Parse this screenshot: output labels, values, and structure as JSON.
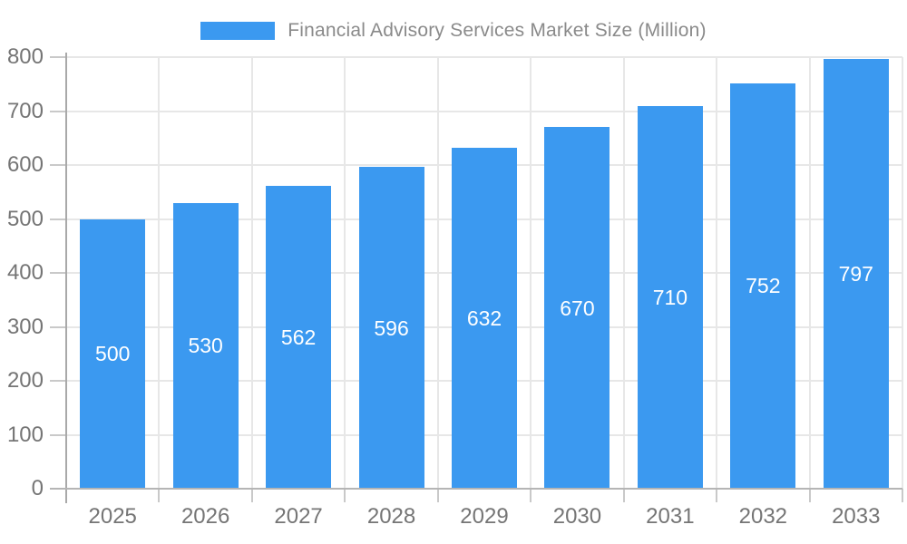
{
  "legend": {
    "label": "Financial Advisory Services Market Size (Million)"
  },
  "chart_data": {
    "type": "bar",
    "title": "Financial Advisory Services Market Size (Million)",
    "series_name": "Financial Advisory Services Market Size (Million)",
    "categories": [
      "2025",
      "2026",
      "2027",
      "2028",
      "2029",
      "2030",
      "2031",
      "2032",
      "2033"
    ],
    "values": [
      500,
      530,
      562,
      596,
      632,
      670,
      710,
      752,
      797
    ],
    "value_labels": [
      "500",
      "530",
      "562",
      "596",
      "632",
      "670",
      "710",
      "752",
      "797"
    ],
    "xlabel": "",
    "ylabel": "",
    "ylim": [
      0,
      800
    ],
    "yticks": [
      0,
      100,
      200,
      300,
      400,
      500,
      600,
      700,
      800
    ],
    "grid": true,
    "legend_position": "top-center",
    "bar_color": "#3B99F0",
    "value_label_color": "#FFFFFF",
    "colors": {
      "axis_label": "#757575",
      "title_text": "#8A8A8A",
      "gridline": "#E7E7E7",
      "tick": "#C9C9C9",
      "y_axis_line": "#A9A9A9",
      "x_axis_line": "#B5B5B5",
      "background": "#FFFFFF"
    }
  }
}
